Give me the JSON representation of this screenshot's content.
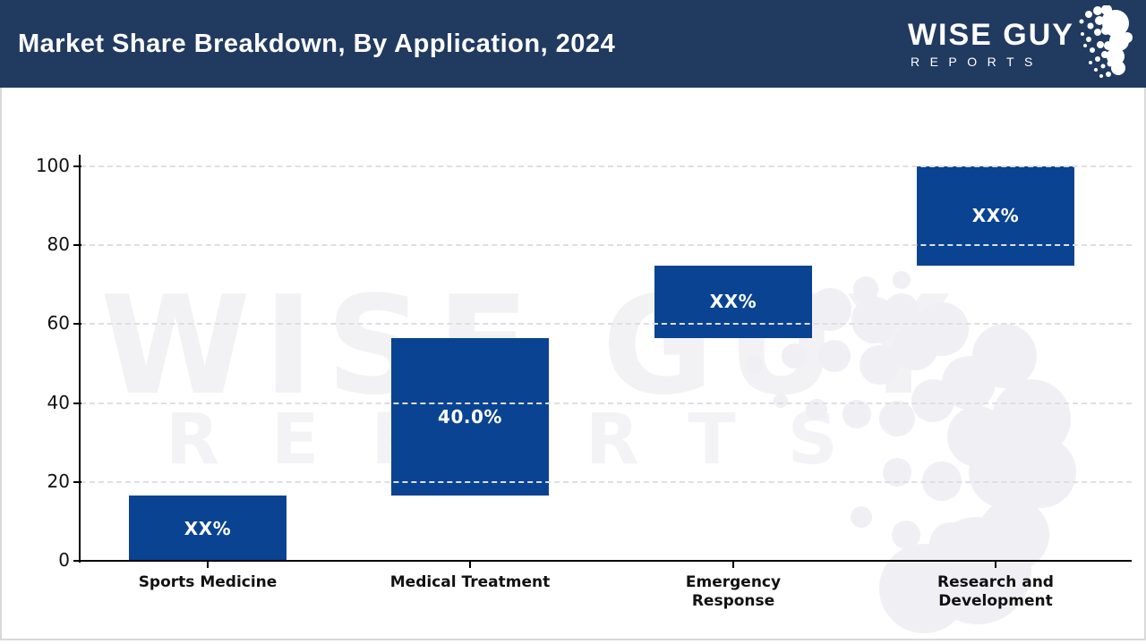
{
  "header": {
    "title": "Market Share Breakdown, By Application, 2024"
  },
  "logo": {
    "wordmark": "WISE GUY",
    "subtext": "REPORTS"
  },
  "watermark": {
    "line1": "WISE GUY",
    "line2": "REPORTS"
  },
  "colors": {
    "header_bg": "#213a60",
    "bar": "#094392",
    "grid": "#dfdfe3",
    "axis": "#000000",
    "watermark": "#f2f2f5",
    "panel_border": "#d9d9d9"
  },
  "chart_data": {
    "type": "bar",
    "subtype": "waterfall",
    "title": "Market Share Breakdown, By Application, 2024",
    "categories": [
      "Sports Medicine",
      "Medical Treatment",
      "Emergency Response",
      "Research and Development"
    ],
    "segments": [
      {
        "category": "Sports Medicine",
        "label": "XX%",
        "from": 0,
        "to": 16.5
      },
      {
        "category": "Medical Treatment",
        "label": "40.0%",
        "from": 16.5,
        "to": 56.5
      },
      {
        "category": "Emergency Response",
        "label": "XX%",
        "from": 56.5,
        "to": 74.8
      },
      {
        "category": "Research and Development",
        "label": "XX%",
        "from": 74.8,
        "to": 100
      }
    ],
    "values_displayed": [
      "XX%",
      "40.0%",
      "XX%",
      "XX%"
    ],
    "yticks": [
      0,
      20,
      40,
      60,
      80,
      100
    ],
    "ylim": [
      0,
      103
    ],
    "xlabel": "",
    "ylabel": "",
    "grid": "dashed-horizontal",
    "legend": "none",
    "bar_color": "#094392",
    "bar_label_color": "#ffffff"
  }
}
